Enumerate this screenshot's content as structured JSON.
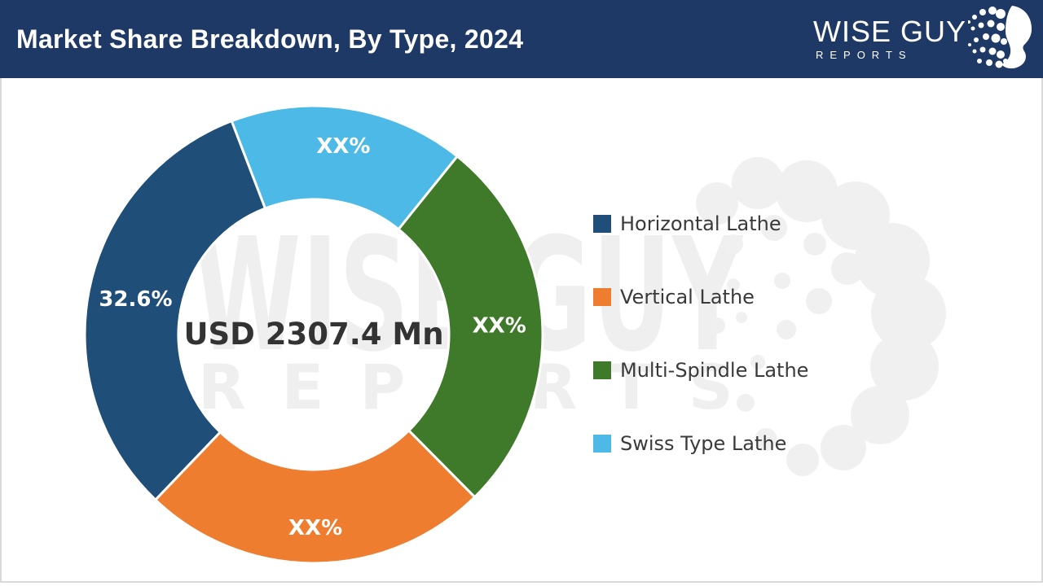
{
  "page": {
    "background": "#ffffff",
    "frame_color": "#d9d9d9"
  },
  "header": {
    "title": "Market Share Breakdown, By Type, 2024",
    "background": "#1f3966",
    "logo": {
      "line1": "WISE GUY",
      "line2": "REPORTS"
    }
  },
  "watermark": {
    "line1": "WISE GUY",
    "line2": "REPORTS"
  },
  "chart_data": {
    "type": "donut",
    "title": "Market Share Breakdown, By Type, 2024",
    "center_label": "USD 2307.4 Mn",
    "legend_position": "right",
    "segments": [
      {
        "name": "Horizontal Lathe",
        "color": "#1f4e79",
        "label": "32.6%",
        "value_pct": 32.6,
        "start_angle": 223.7,
        "end_angle": 339.0,
        "label_radius": 223
      },
      {
        "name": "Vertical Lathe",
        "color": "#ef7d30",
        "label": "XX%",
        "start_angle": 135.3,
        "end_angle": 223.7,
        "label_radius": 237
      },
      {
        "name": "Multi-Spindle Lathe",
        "color": "#3f7a2a",
        "label": "XX%",
        "start_angle": 38.8,
        "end_angle": 135.3,
        "label_radius": 228
      },
      {
        "name": "Swiss Type Lathe",
        "color": "#4cb9e7",
        "label": "XX%",
        "start_angle": 339.0,
        "end_angle": 398.8,
        "label_radius": 235
      }
    ]
  },
  "legend": {
    "items": [
      {
        "label": "Horizontal Lathe",
        "color": "#1f4e79"
      },
      {
        "label": "Vertical Lathe",
        "color": "#ef7d30"
      },
      {
        "label": "Multi-Spindle Lathe",
        "color": "#3f7a2a"
      },
      {
        "label": "Swiss Type Lathe",
        "color": "#4cb9e7"
      }
    ]
  }
}
